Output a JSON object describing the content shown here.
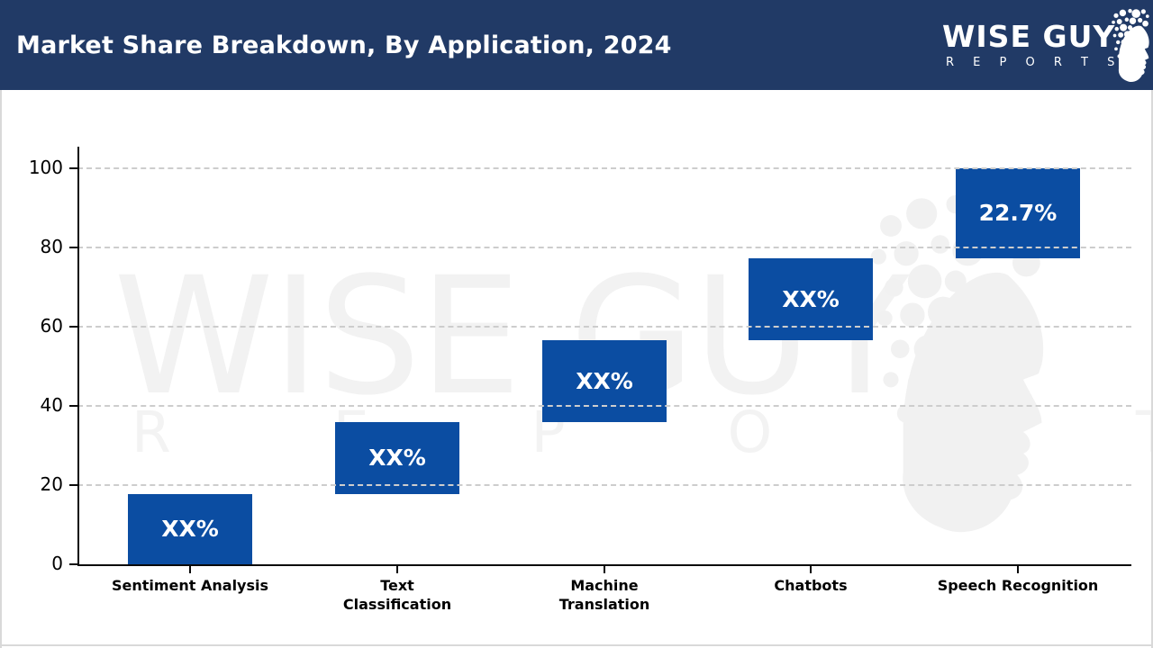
{
  "header": {
    "title": "Market Share Breakdown, By Application, 2024",
    "logo": {
      "name": "WISE GUY",
      "sub": "R E P O R T S"
    }
  },
  "watermark": {
    "name": "WISE GUY",
    "sub": "R E P O R T S"
  },
  "chart_data": {
    "type": "bar",
    "variant": "waterfall",
    "title": "Market Share Breakdown, By Application, 2024",
    "categories": [
      {
        "name": "Sentiment Analysis",
        "lines": [
          "Sentiment Analysis"
        ]
      },
      {
        "name": "Text Classification",
        "lines": [
          "Text",
          "Classification"
        ]
      },
      {
        "name": "Machine Translation",
        "lines": [
          "Machine",
          "Translation"
        ]
      },
      {
        "name": "Chatbots",
        "lines": [
          "Chatbots"
        ]
      },
      {
        "name": "Speech Recognition",
        "lines": [
          "Speech Recognition"
        ]
      }
    ],
    "segments": [
      {
        "category": "Sentiment Analysis",
        "start": 0,
        "end": 17.7,
        "label": "XX%"
      },
      {
        "category": "Text Classification",
        "start": 17.7,
        "end": 35.9,
        "label": "XX%"
      },
      {
        "category": "Machine Translation",
        "start": 35.9,
        "end": 56.6,
        "label": "XX%"
      },
      {
        "category": "Chatbots",
        "start": 56.6,
        "end": 77.3,
        "label": "XX%"
      },
      {
        "category": "Speech Recognition",
        "start": 77.3,
        "end": 100,
        "label": "22.7%"
      }
    ],
    "yticks": [
      0,
      20,
      40,
      60,
      80,
      100
    ],
    "ylim": [
      0,
      106
    ],
    "grid": {
      "axis": "y",
      "style": "dashed",
      "color": "#cdcdcd"
    },
    "legend": null,
    "bar_color": "#0B4DA2",
    "bar_label_color": "#ffffff",
    "colors": {
      "header_bg": "#213A66",
      "axis": "#0a0a0a",
      "watermark": "#f2f2f2",
      "edge_border": "#d9d9d9"
    }
  }
}
